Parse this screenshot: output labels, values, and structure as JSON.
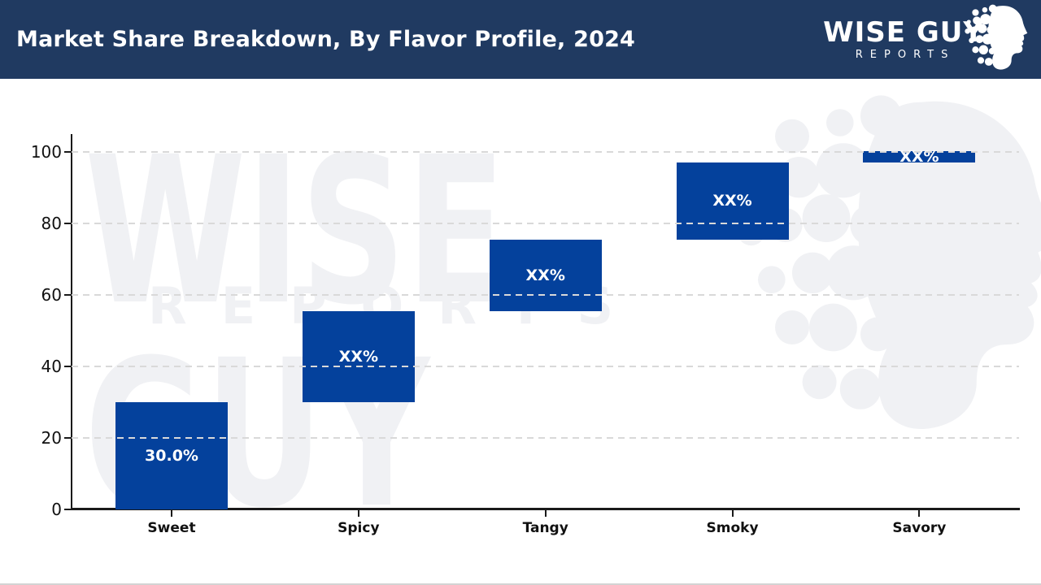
{
  "header": {
    "title": "Market Share Breakdown, By Flavor Profile, 2024",
    "logo_line1": "WISE GUY",
    "logo_line2": "REPORTS"
  },
  "watermark": {
    "line1": "WISE GUY",
    "line2": "REPORTS"
  },
  "chart_data": {
    "type": "bar",
    "subtype": "waterfall",
    "title": "Market Share Breakdown, By Flavor Profile, 2024",
    "categories": [
      "Sweet",
      "Spicy",
      "Tangy",
      "Smoky",
      "Savory"
    ],
    "segments": [
      {
        "category": "Sweet",
        "start": 0,
        "end": 30,
        "label": "30.0%"
      },
      {
        "category": "Spicy",
        "start": 30,
        "end": 55.5,
        "label": "XX%"
      },
      {
        "category": "Tangy",
        "start": 55.5,
        "end": 75.5,
        "label": "XX%"
      },
      {
        "category": "Smoky",
        "start": 75.5,
        "end": 97,
        "label": "XX%"
      },
      {
        "category": "Savory",
        "start": 97,
        "end": 100.3,
        "label": "XX%"
      }
    ],
    "yticks": [
      0,
      20,
      40,
      60,
      80,
      100
    ],
    "ylim": [
      0,
      105
    ],
    "xlabel": "",
    "ylabel": "",
    "legend": "none",
    "grid": "horizontal-dashed",
    "bar_color": "#04419c"
  },
  "colors": {
    "header_bg": "#203a61",
    "bar": "#04419c",
    "grid": "#d9d9d9",
    "axis": "#1a1a1a",
    "watermark": "#f0f1f4"
  }
}
